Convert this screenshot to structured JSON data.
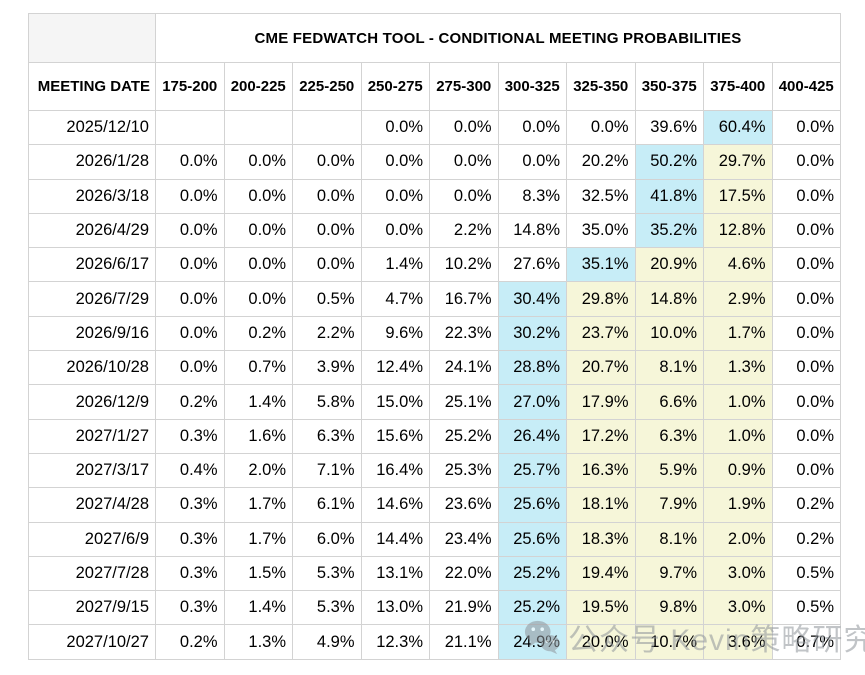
{
  "title": "CME FEDWATCH TOOL - CONDITIONAL MEETING PROBABILITIES",
  "date_column_header": "MEETING DATE",
  "rate_columns": [
    "175-200",
    "200-225",
    "225-250",
    "250-275",
    "275-300",
    "300-325",
    "325-350",
    "350-375",
    "375-400",
    "400-425"
  ],
  "highlight_colors": {
    "mode_cell": "#c7edf7",
    "right_tail_cell": "#f6f6d9"
  },
  "rows": [
    {
      "date": "2025/12/10",
      "values": [
        "",
        "",
        "",
        "0.0%",
        "0.0%",
        "0.0%",
        "0.0%",
        "39.6%",
        "60.4%",
        "0.0%"
      ],
      "styles": [
        "",
        "",
        "",
        "",
        "",
        "",
        "",
        "",
        "cyan",
        ""
      ]
    },
    {
      "date": "2026/1/28",
      "values": [
        "0.0%",
        "0.0%",
        "0.0%",
        "0.0%",
        "0.0%",
        "0.0%",
        "20.2%",
        "50.2%",
        "29.7%",
        "0.0%"
      ],
      "styles": [
        "",
        "",
        "",
        "",
        "",
        "",
        "",
        "cyan",
        "yellow",
        ""
      ]
    },
    {
      "date": "2026/3/18",
      "values": [
        "0.0%",
        "0.0%",
        "0.0%",
        "0.0%",
        "0.0%",
        "8.3%",
        "32.5%",
        "41.8%",
        "17.5%",
        "0.0%"
      ],
      "styles": [
        "",
        "",
        "",
        "",
        "",
        "",
        "",
        "cyan",
        "yellow",
        ""
      ]
    },
    {
      "date": "2026/4/29",
      "values": [
        "0.0%",
        "0.0%",
        "0.0%",
        "0.0%",
        "2.2%",
        "14.8%",
        "35.0%",
        "35.2%",
        "12.8%",
        "0.0%"
      ],
      "styles": [
        "",
        "",
        "",
        "",
        "",
        "",
        "",
        "cyan",
        "yellow",
        ""
      ]
    },
    {
      "date": "2026/6/17",
      "values": [
        "0.0%",
        "0.0%",
        "0.0%",
        "1.4%",
        "10.2%",
        "27.6%",
        "35.1%",
        "20.9%",
        "4.6%",
        "0.0%"
      ],
      "styles": [
        "",
        "",
        "",
        "",
        "",
        "",
        "cyan",
        "yellow",
        "yellow",
        ""
      ]
    },
    {
      "date": "2026/7/29",
      "values": [
        "0.0%",
        "0.0%",
        "0.5%",
        "4.7%",
        "16.7%",
        "30.4%",
        "29.8%",
        "14.8%",
        "2.9%",
        "0.0%"
      ],
      "styles": [
        "",
        "",
        "",
        "",
        "",
        "cyan",
        "yellow",
        "yellow",
        "yellow",
        ""
      ]
    },
    {
      "date": "2026/9/16",
      "values": [
        "0.0%",
        "0.2%",
        "2.2%",
        "9.6%",
        "22.3%",
        "30.2%",
        "23.7%",
        "10.0%",
        "1.7%",
        "0.0%"
      ],
      "styles": [
        "",
        "",
        "",
        "",
        "",
        "cyan",
        "yellow",
        "yellow",
        "yellow",
        ""
      ]
    },
    {
      "date": "2026/10/28",
      "values": [
        "0.0%",
        "0.7%",
        "3.9%",
        "12.4%",
        "24.1%",
        "28.8%",
        "20.7%",
        "8.1%",
        "1.3%",
        "0.0%"
      ],
      "styles": [
        "",
        "",
        "",
        "",
        "",
        "cyan",
        "yellow",
        "yellow",
        "yellow",
        ""
      ]
    },
    {
      "date": "2026/12/9",
      "values": [
        "0.2%",
        "1.4%",
        "5.8%",
        "15.0%",
        "25.1%",
        "27.0%",
        "17.9%",
        "6.6%",
        "1.0%",
        "0.0%"
      ],
      "styles": [
        "",
        "",
        "",
        "",
        "",
        "cyan",
        "yellow",
        "yellow",
        "yellow",
        ""
      ]
    },
    {
      "date": "2027/1/27",
      "values": [
        "0.3%",
        "1.6%",
        "6.3%",
        "15.6%",
        "25.2%",
        "26.4%",
        "17.2%",
        "6.3%",
        "1.0%",
        "0.0%"
      ],
      "styles": [
        "",
        "",
        "",
        "",
        "",
        "cyan",
        "yellow",
        "yellow",
        "yellow",
        ""
      ]
    },
    {
      "date": "2027/3/17",
      "values": [
        "0.4%",
        "2.0%",
        "7.1%",
        "16.4%",
        "25.3%",
        "25.7%",
        "16.3%",
        "5.9%",
        "0.9%",
        "0.0%"
      ],
      "styles": [
        "",
        "",
        "",
        "",
        "",
        "cyan",
        "yellow",
        "yellow",
        "yellow",
        ""
      ]
    },
    {
      "date": "2027/4/28",
      "values": [
        "0.3%",
        "1.7%",
        "6.1%",
        "14.6%",
        "23.6%",
        "25.6%",
        "18.1%",
        "7.9%",
        "1.9%",
        "0.2%"
      ],
      "styles": [
        "",
        "",
        "",
        "",
        "",
        "cyan",
        "yellow",
        "yellow",
        "yellow",
        ""
      ]
    },
    {
      "date": "2027/6/9",
      "values": [
        "0.3%",
        "1.7%",
        "6.0%",
        "14.4%",
        "23.4%",
        "25.6%",
        "18.3%",
        "8.1%",
        "2.0%",
        "0.2%"
      ],
      "styles": [
        "",
        "",
        "",
        "",
        "",
        "cyan",
        "yellow",
        "yellow",
        "yellow",
        ""
      ]
    },
    {
      "date": "2027/7/28",
      "values": [
        "0.3%",
        "1.5%",
        "5.3%",
        "13.1%",
        "22.0%",
        "25.2%",
        "19.4%",
        "9.7%",
        "3.0%",
        "0.5%"
      ],
      "styles": [
        "",
        "",
        "",
        "",
        "",
        "cyan",
        "yellow",
        "yellow",
        "yellow",
        ""
      ]
    },
    {
      "date": "2027/9/15",
      "values": [
        "0.3%",
        "1.4%",
        "5.3%",
        "13.0%",
        "21.9%",
        "25.2%",
        "19.5%",
        "9.8%",
        "3.0%",
        "0.5%"
      ],
      "styles": [
        "",
        "",
        "",
        "",
        "",
        "cyan",
        "yellow",
        "yellow",
        "yellow",
        ""
      ]
    },
    {
      "date": "2027/10/27",
      "values": [
        "0.2%",
        "1.3%",
        "4.9%",
        "12.3%",
        "21.1%",
        "24.9%",
        "20.0%",
        "10.7%",
        "3.6%",
        "0.7%"
      ],
      "styles": [
        "",
        "",
        "",
        "",
        "",
        "cyan",
        "yellow",
        "yellow",
        "yellow",
        ""
      ]
    }
  ],
  "watermark": {
    "icon": "wechat-icon",
    "text": "公众号 Kevin策略研究"
  }
}
